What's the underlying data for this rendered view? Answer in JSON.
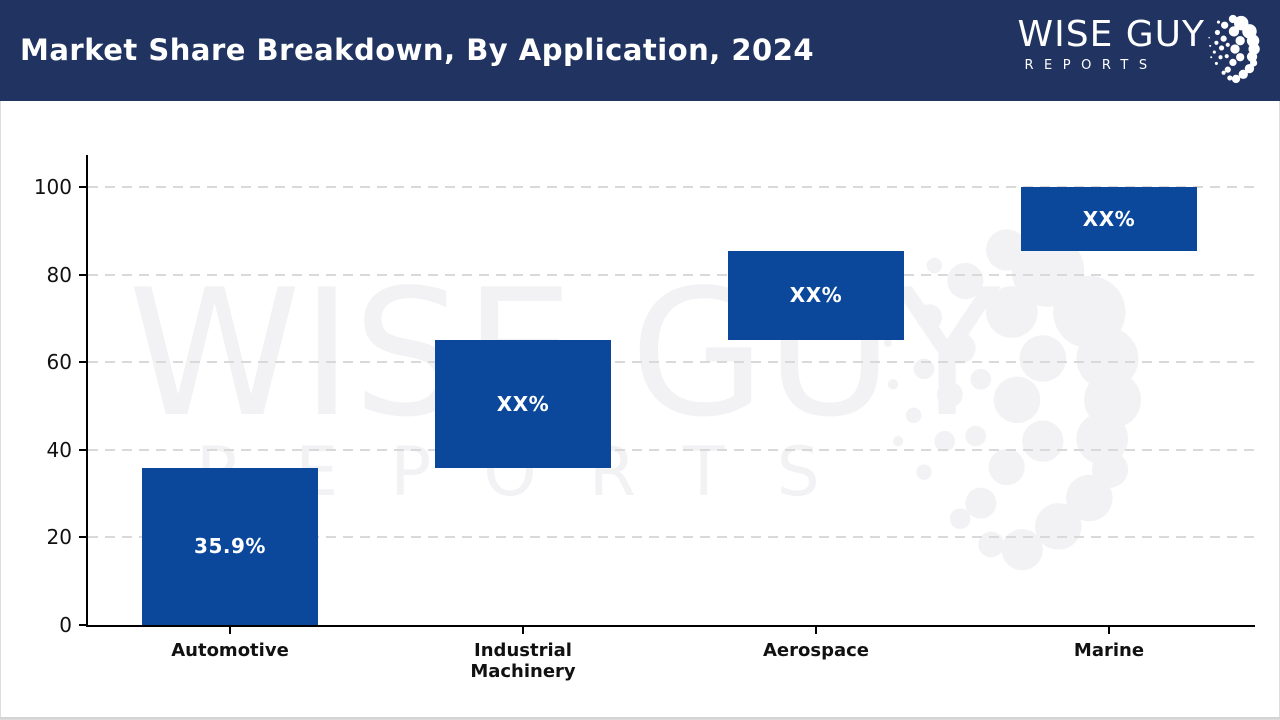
{
  "header": {
    "title": "Market Share Breakdown, By Application, 2024",
    "logo": {
      "line1": "WISE GUY",
      "line2": "REPORTS"
    }
  },
  "watermark": {
    "line1": "WISE GUY",
    "line2": "REPORTS"
  },
  "colors": {
    "header_bg": "#203361",
    "bar": "#0b489c",
    "grid": "#d9d9d9",
    "watermark": "#f2f2f4",
    "bar_label": "#ffffff",
    "title_text": "#ffffff",
    "tick_label": "#111111"
  },
  "chart_data": {
    "type": "bar",
    "subtype": "waterfall",
    "title": "Market Share Breakdown, By Application, 2024",
    "categories": [
      "Automotive",
      "Industrial\nMachinery",
      "Aerospace",
      "Marine"
    ],
    "bar_labels": [
      "35.9%",
      "XX%",
      "XX%",
      "XX%"
    ],
    "segments": [
      {
        "start": 0,
        "end": 35.9
      },
      {
        "start": 35.9,
        "end": 65
      },
      {
        "start": 65,
        "end": 85.5
      },
      {
        "start": 85.5,
        "end": 100
      }
    ],
    "yticks": [
      0,
      20,
      40,
      60,
      80,
      100
    ],
    "ylim": [
      0,
      107
    ],
    "xlabel": "",
    "ylabel": "",
    "grid": "dashed-horizontal",
    "legend": "none"
  }
}
